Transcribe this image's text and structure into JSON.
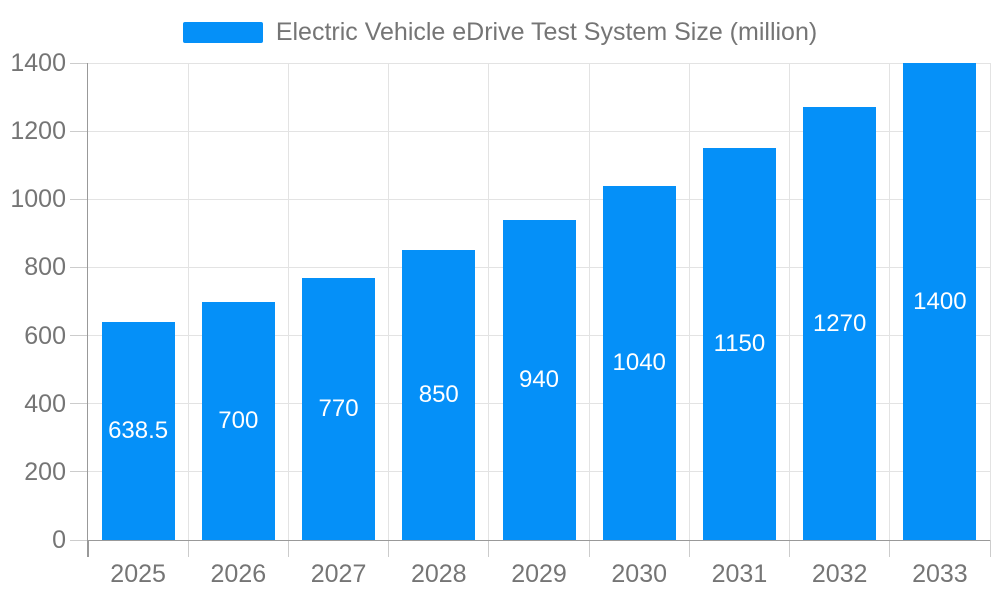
{
  "chart_data": {
    "type": "bar",
    "title": "Electric Vehicle eDrive Test System Size (million)",
    "legend": {
      "label": "Electric Vehicle eDrive Test System Size (million)",
      "position": "top-center",
      "swatch_color": "#0590f8"
    },
    "categories": [
      "2025",
      "2026",
      "2027",
      "2028",
      "2029",
      "2030",
      "2031",
      "2032",
      "2033"
    ],
    "series": [
      {
        "name": "Electric Vehicle eDrive Test System Size (million)",
        "values": [
          638.5,
          700,
          770,
          850,
          940,
          1040,
          1150,
          1270,
          1400
        ],
        "value_labels": [
          "638.5",
          "700",
          "770",
          "850",
          "940",
          "1040",
          "1150",
          "1270",
          "1400"
        ]
      }
    ],
    "xlabel": "",
    "ylabel": "",
    "ylim": [
      0,
      1400
    ],
    "yticks": [
      0,
      200,
      400,
      600,
      800,
      1000,
      1200,
      1400
    ],
    "grid": true,
    "legend_position": "top",
    "value_labels_inside_bars": true,
    "colors": {
      "bar": "#0590f8",
      "bar_value_text": "#ffffff",
      "axis_text": "#757575",
      "legend_text": "#757575",
      "grid_line": "#e3e3e3",
      "axis_line": "#999999",
      "tick_line": "#cccccc",
      "background": "#ffffff"
    }
  }
}
